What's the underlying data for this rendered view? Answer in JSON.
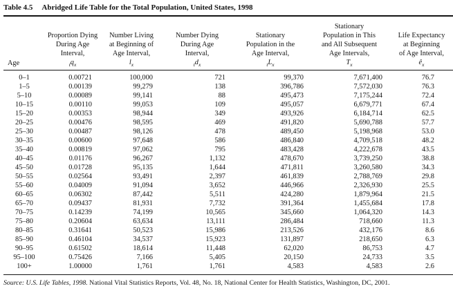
{
  "title": {
    "label": "Table 4.5",
    "text": "Abridged Life Table for the Total Population, United States, 1998"
  },
  "table": {
    "columns": [
      {
        "id": "age",
        "lines": [
          "Age"
        ],
        "symbol": null
      },
      {
        "id": "qx",
        "lines": [
          "Proportion Dying",
          "During Age",
          "Interval,"
        ],
        "symbol": {
          "pre": "t",
          "main": "q",
          "post": "x"
        }
      },
      {
        "id": "lx",
        "lines": [
          "Number Living",
          "at Beginning of",
          "Age Interval,"
        ],
        "symbol": {
          "pre": "",
          "main": "l",
          "post": "x"
        }
      },
      {
        "id": "dx",
        "lines": [
          "Number Dying",
          "During Age",
          "Interval,"
        ],
        "symbol": {
          "pre": "t",
          "main": "d",
          "post": "x"
        }
      },
      {
        "id": "Lx",
        "lines": [
          "Stationary",
          "Population in the",
          "Age Interval,"
        ],
        "symbol": {
          "pre": "t",
          "main": "L",
          "post": "x"
        }
      },
      {
        "id": "Tx",
        "lines": [
          "Stationary",
          "Population in This",
          "and All Subsequent",
          "Age Intervals,"
        ],
        "symbol": {
          "pre": "",
          "main": "T",
          "post": "x"
        }
      },
      {
        "id": "ex",
        "lines": [
          "Life Expectancy",
          "at Beginning",
          "of Age Interval,"
        ],
        "symbol": {
          "pre": "",
          "main": "ê",
          "post": "x"
        }
      }
    ],
    "rows": [
      [
        "0–1",
        "0.00721",
        "100,000",
        "721",
        "99,370",
        "7,671,400",
        "76.7"
      ],
      [
        "1–5",
        "0.00139",
        "99,279",
        "138",
        "396,786",
        "7,572,030",
        "76.3"
      ],
      [
        "5–10",
        "0.00089",
        "99,141",
        "88",
        "495,473",
        "7,175,244",
        "72.4"
      ],
      [
        "10–15",
        "0.00110",
        "99,053",
        "109",
        "495,057",
        "6,679,771",
        "67.4"
      ],
      [
        "15–20",
        "0.00353",
        "98,944",
        "349",
        "493,926",
        "6,184,714",
        "62.5"
      ],
      [
        "20–25",
        "0.00476",
        "98,595",
        "469",
        "491,820",
        "5,690,788",
        "57.7"
      ],
      [
        "25–30",
        "0.00487",
        "98,126",
        "478",
        "489,450",
        "5,198,968",
        "53.0"
      ],
      [
        "30–35",
        "0.00600",
        "97,648",
        "586",
        "486,840",
        "4,709,518",
        "48.2"
      ],
      [
        "35–40",
        "0.00819",
        "97,062",
        "795",
        "483,428",
        "4,222,678",
        "43.5"
      ],
      [
        "40–45",
        "0.01176",
        "96,267",
        "1,132",
        "478,670",
        "3,739,250",
        "38.8"
      ],
      [
        "45–50",
        "0.01728",
        "95,135",
        "1,644",
        "471,811",
        "3,260,580",
        "34.3"
      ],
      [
        "50–55",
        "0.02564",
        "93,491",
        "2,397",
        "461,839",
        "2,788,769",
        "29.8"
      ],
      [
        "55–60",
        "0.04009",
        "91,094",
        "3,652",
        "446,966",
        "2,326,930",
        "25.5"
      ],
      [
        "60–65",
        "0.06302",
        "87,442",
        "5,511",
        "424,280",
        "1,879,964",
        "21.5"
      ],
      [
        "65–70",
        "0.09437",
        "81,931",
        "7,732",
        "391,364",
        "1,455,684",
        "17.8"
      ],
      [
        "70–75",
        "0.14239",
        "74,199",
        "10,565",
        "345,660",
        "1,064,320",
        "14.3"
      ],
      [
        "75–80",
        "0.20604",
        "63,634",
        "13,111",
        "286,484",
        "718,660",
        "11.3"
      ],
      [
        "80–85",
        "0.31641",
        "50,523",
        "15,986",
        "213,526",
        "432,176",
        "8.6"
      ],
      [
        "85–90",
        "0.46104",
        "34,537",
        "15,923",
        "131,897",
        "218,650",
        "6.3"
      ],
      [
        "90–95",
        "0.61502",
        "18,614",
        "11,448",
        "62,020",
        "86,753",
        "4.7"
      ],
      [
        "95–100",
        "0.75426",
        "7,166",
        "5,405",
        "20,150",
        "24,733",
        "3.5"
      ],
      [
        "100+",
        "1.00000",
        "1,761",
        "1,761",
        "4,583",
        "4,583",
        "2.6"
      ]
    ]
  },
  "source": {
    "citation": "Source: U.S. Life Tables, 1998.",
    "rest": " National Vital Statistics Reports, Vol. 48, No. 18, National Center for Health Statistics, Washington, DC, 2001."
  }
}
